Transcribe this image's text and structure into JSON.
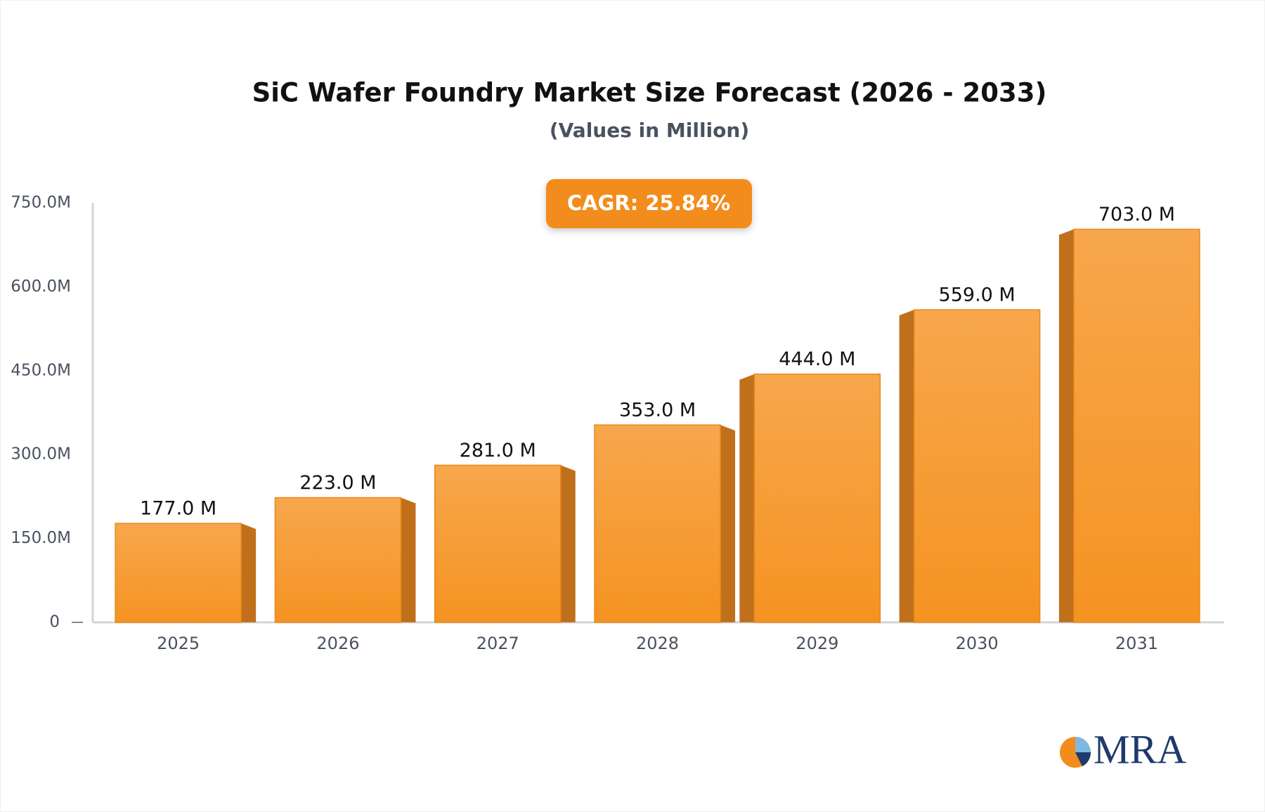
{
  "chart_data": {
    "type": "bar",
    "title": "SiC Wafer Foundry Market Size Forecast (2026 - 2033)",
    "subtitle": "(Values in Million)",
    "annotation": "CAGR: 25.84%",
    "categories": [
      "2025",
      "2026",
      "2027",
      "2028",
      "2029",
      "2030",
      "2031"
    ],
    "values": [
      177,
      223,
      281,
      353,
      444,
      559,
      703
    ],
    "value_labels": [
      "177.0 M",
      "223.0 M",
      "281.0 M",
      "353.0 M",
      "444.0 M",
      "559.0 M",
      "703.0 M"
    ],
    "color": "#f69a2e",
    "ylim": [
      0,
      750
    ],
    "yticks": [
      0,
      {
        "value": 150,
        "label": "150.0M"
      },
      {
        "value": 300,
        "label": "300.0M"
      },
      {
        "value": 450,
        "label": "450.0M"
      },
      {
        "value": 600,
        "label": "600.0M"
      },
      {
        "value": 750,
        "label": "750.0M"
      }
    ],
    "grid": false
  },
  "logo": "MRA"
}
